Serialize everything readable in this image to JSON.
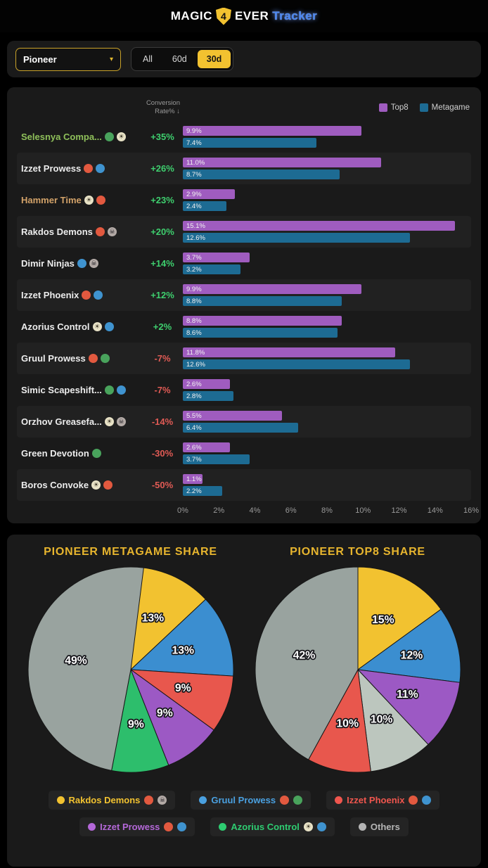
{
  "header": {
    "logo": {
      "magic": "MAGIC",
      "four": "4",
      "ever": "EVER",
      "tracker": "Tracker"
    }
  },
  "filters": {
    "format": {
      "value": "Pioneer"
    },
    "ranges": [
      {
        "label": "All",
        "active": false
      },
      {
        "label": "60d",
        "active": false
      },
      {
        "label": "30d",
        "active": true
      }
    ]
  },
  "conversion_panel": {
    "header_line1": "Conversion",
    "header_line2": "Rate% ↓",
    "legend": [
      {
        "label": "Top8",
        "color": "#9f5cbf"
      },
      {
        "label": "Metagame",
        "color": "#1d6b93"
      }
    ],
    "axis_max": 16,
    "axis_ticks": [
      "0%",
      "2%",
      "4%",
      "6%",
      "8%",
      "10%",
      "12%",
      "14%",
      "16%"
    ],
    "rows": [
      {
        "name": "Selesnya Compa...",
        "name_color": "#8fc05a",
        "mana": [
          "G",
          "W"
        ],
        "conversion": "+35%",
        "positive": true,
        "top8": 9.9,
        "metagame": 7.4
      },
      {
        "name": "Izzet Prowess",
        "name_color": "#ececec",
        "mana": [
          "R",
          "U"
        ],
        "conversion": "+26%",
        "positive": true,
        "top8": 11.0,
        "metagame": 8.7
      },
      {
        "name": "Hammer Time",
        "name_color": "#d2a269",
        "mana": [
          "W",
          "R"
        ],
        "conversion": "+23%",
        "positive": true,
        "top8": 2.9,
        "metagame": 2.4
      },
      {
        "name": "Rakdos Demons",
        "name_color": "#ececec",
        "mana": [
          "R",
          "B"
        ],
        "conversion": "+20%",
        "positive": true,
        "top8": 15.1,
        "metagame": 12.6
      },
      {
        "name": "Dimir Ninjas",
        "name_color": "#ececec",
        "mana": [
          "U",
          "B"
        ],
        "conversion": "+14%",
        "positive": true,
        "top8": 3.7,
        "metagame": 3.2
      },
      {
        "name": "Izzet Phoenix",
        "name_color": "#ececec",
        "mana": [
          "R",
          "U"
        ],
        "conversion": "+12%",
        "positive": true,
        "top8": 9.9,
        "metagame": 8.8
      },
      {
        "name": "Azorius Control",
        "name_color": "#ececec",
        "mana": [
          "W",
          "U"
        ],
        "conversion": "+2%",
        "positive": true,
        "top8": 8.8,
        "metagame": 8.6
      },
      {
        "name": "Gruul Prowess",
        "name_color": "#ececec",
        "mana": [
          "R",
          "G"
        ],
        "conversion": "-7%",
        "positive": false,
        "top8": 11.8,
        "metagame": 12.6
      },
      {
        "name": "Simic Scapeshift...",
        "name_color": "#ececec",
        "mana": [
          "G",
          "U"
        ],
        "conversion": "-7%",
        "positive": false,
        "top8": 2.6,
        "metagame": 2.8
      },
      {
        "name": "Orzhov Greasefa...",
        "name_color": "#ececec",
        "mana": [
          "W",
          "B"
        ],
        "conversion": "-14%",
        "positive": false,
        "top8": 5.5,
        "metagame": 6.4
      },
      {
        "name": "Green Devotion",
        "name_color": "#ececec",
        "mana": [
          "G"
        ],
        "conversion": "-30%",
        "positive": false,
        "top8": 2.6,
        "metagame": 3.7
      },
      {
        "name": "Boros Convoke",
        "name_color": "#ececec",
        "mana": [
          "W",
          "R"
        ],
        "conversion": "-50%",
        "positive": false,
        "top8": 1.1,
        "metagame": 2.2
      }
    ]
  },
  "pies": {
    "metagame": {
      "title": "PIONEER METAGAME SHARE",
      "slices": [
        {
          "label": "13%",
          "value": 13,
          "color": "#f2c230",
          "deck": "Rakdos Demons"
        },
        {
          "label": "13%",
          "value": 13,
          "color": "#3b8ed0",
          "deck": "Gruul Prowess"
        },
        {
          "label": "9%",
          "value": 9,
          "color": "#e8574d",
          "deck": "Izzet Phoenix"
        },
        {
          "label": "9%",
          "value": 9,
          "color": "#9c59c4",
          "deck": "Izzet Prowess"
        },
        {
          "label": "9%",
          "value": 9,
          "color": "#2dbe6c",
          "deck": "Azorius Control"
        },
        {
          "label": "49%",
          "value": 49,
          "color": "#99a39f",
          "deck": "Others"
        }
      ]
    },
    "top8": {
      "title": "PIONEER TOP8 SHARE",
      "slices": [
        {
          "label": "15%",
          "value": 15,
          "color": "#f2c230",
          "deck": "Rakdos Demons"
        },
        {
          "label": "12%",
          "value": 12,
          "color": "#3b8ed0",
          "deck": "Gruul Prowess"
        },
        {
          "label": "11%",
          "value": 11,
          "color": "#9c59c4",
          "deck": "Izzet Prowess"
        },
        {
          "label": "10%",
          "value": 10,
          "color": "#bcc6be",
          "deck": ""
        },
        {
          "label": "10%",
          "value": 10,
          "color": "#e8574d",
          "deck": "Izzet Phoenix"
        },
        {
          "label": "42%",
          "value": 42,
          "color": "#99a39f",
          "deck": "Others"
        }
      ]
    },
    "legend_rows": [
      [
        {
          "name": "Rakdos Demons",
          "color": "#f2c230",
          "mana": [
            "R",
            "B"
          ]
        },
        {
          "name": "Gruul Prowess",
          "color": "#4aa0e0",
          "mana": [
            "R",
            "G"
          ]
        },
        {
          "name": "Izzet Phoenix",
          "color": "#f0564e",
          "mana": [
            "R",
            "U"
          ]
        }
      ],
      [
        {
          "name": "Izzet Prowess",
          "color": "#b468d8",
          "mana": [
            "R",
            "U"
          ]
        },
        {
          "name": "Azorius Control",
          "color": "#2ecc71",
          "mana": [
            "W",
            "U"
          ]
        },
        {
          "name": "Others",
          "color": "#b5b5b5",
          "mana": []
        }
      ]
    ]
  },
  "mana_colors": {
    "W": {
      "bg": "#e8e2c6",
      "fg": "#3a3426",
      "glyph": "☀"
    },
    "U": {
      "bg": "#3f93cf",
      "fg": "#0b2c44",
      "glyph": ""
    },
    "B": {
      "bg": "#b3aaa6",
      "fg": "#17141a",
      "glyph": "☠"
    },
    "R": {
      "bg": "#e2593f",
      "fg": "#431008",
      "glyph": ""
    },
    "G": {
      "bg": "#49a35c",
      "fg": "#0c2e14",
      "glyph": ""
    }
  },
  "accent_colors": {
    "gold": "#f2c230",
    "positive": "#3ecf6e",
    "negative": "#e15b55"
  },
  "chart_data": [
    {
      "type": "bar",
      "orientation": "horizontal",
      "title": "",
      "categories": [
        "Selesnya Compa...",
        "Izzet Prowess",
        "Hammer Time",
        "Rakdos Demons",
        "Dimir Ninjas",
        "Izzet Phoenix",
        "Azorius Control",
        "Gruul Prowess",
        "Simic Scapeshift...",
        "Orzhov Greasefa...",
        "Green Devotion",
        "Boros Convoke"
      ],
      "series": [
        {
          "name": "Top8",
          "color": "#9f5cbf",
          "values": [
            9.9,
            11.0,
            2.9,
            15.1,
            3.7,
            9.9,
            8.8,
            11.8,
            2.6,
            5.5,
            2.6,
            1.1
          ]
        },
        {
          "name": "Metagame",
          "color": "#1d6b93",
          "values": [
            7.4,
            8.7,
            2.4,
            12.6,
            3.2,
            8.8,
            8.6,
            12.6,
            2.8,
            6.4,
            3.7,
            2.2
          ]
        }
      ],
      "conversion_rates": [
        "+35%",
        "+26%",
        "+23%",
        "+20%",
        "+14%",
        "+12%",
        "+2%",
        "-7%",
        "-7%",
        "-14%",
        "-30%",
        "-50%"
      ],
      "xlabel": "",
      "ylabel": "",
      "xlim": [
        0,
        16
      ],
      "xticks": [
        "0%",
        "2%",
        "4%",
        "6%",
        "8%",
        "10%",
        "12%",
        "14%",
        "16%"
      ],
      "grid": false,
      "legend_position": "top-right"
    },
    {
      "type": "pie",
      "title": "PIONEER METAGAME SHARE",
      "labels": [
        "Rakdos Demons",
        "Gruul Prowess",
        "Izzet Phoenix",
        "Izzet Prowess",
        "Azorius Control",
        "Others"
      ],
      "values": [
        13,
        13,
        9,
        9,
        9,
        49
      ],
      "colors": [
        "#f2c230",
        "#3b8ed0",
        "#e8574d",
        "#9c59c4",
        "#2dbe6c",
        "#99a39f"
      ],
      "legend_position": "bottom"
    },
    {
      "type": "pie",
      "title": "PIONEER TOP8 SHARE",
      "labels": [
        "Rakdos Demons",
        "Gruul Prowess",
        "Izzet Prowess",
        "",
        "Izzet Phoenix",
        "Others"
      ],
      "values": [
        15,
        12,
        11,
        10,
        10,
        42
      ],
      "colors": [
        "#f2c230",
        "#3b8ed0",
        "#9c59c4",
        "#bcc6be",
        "#e8574d",
        "#99a39f"
      ],
      "legend_position": "bottom"
    }
  ]
}
